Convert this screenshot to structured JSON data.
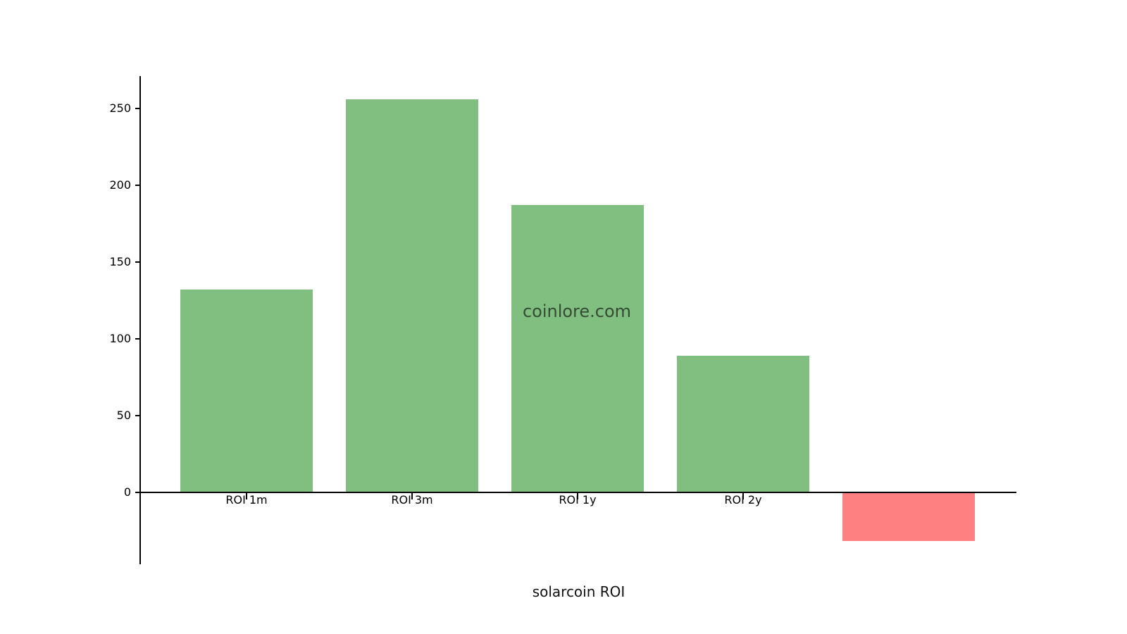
{
  "chart_data": {
    "type": "bar",
    "title": "solarcoin ROI",
    "watermark": "coinlore.com",
    "categories": [
      "ROI 1m",
      "ROI 3m",
      "ROI 1y",
      "ROI 2y",
      ""
    ],
    "values": [
      132,
      256,
      187,
      89,
      -32
    ],
    "bar_colors": [
      "#80bf80",
      "#80bf80",
      "#80bf80",
      "#80bf80",
      "#ff8080"
    ],
    "positive_color": "#80bf80",
    "negative_color": "#ff8080",
    "axis_color": "#000000",
    "text_color": "#000000",
    "xlabel": "",
    "ylabel": "",
    "yticks": [
      0,
      50,
      100,
      150,
      200,
      250
    ],
    "ylim": [
      -47,
      271
    ],
    "grid": false,
    "legend": null
  }
}
